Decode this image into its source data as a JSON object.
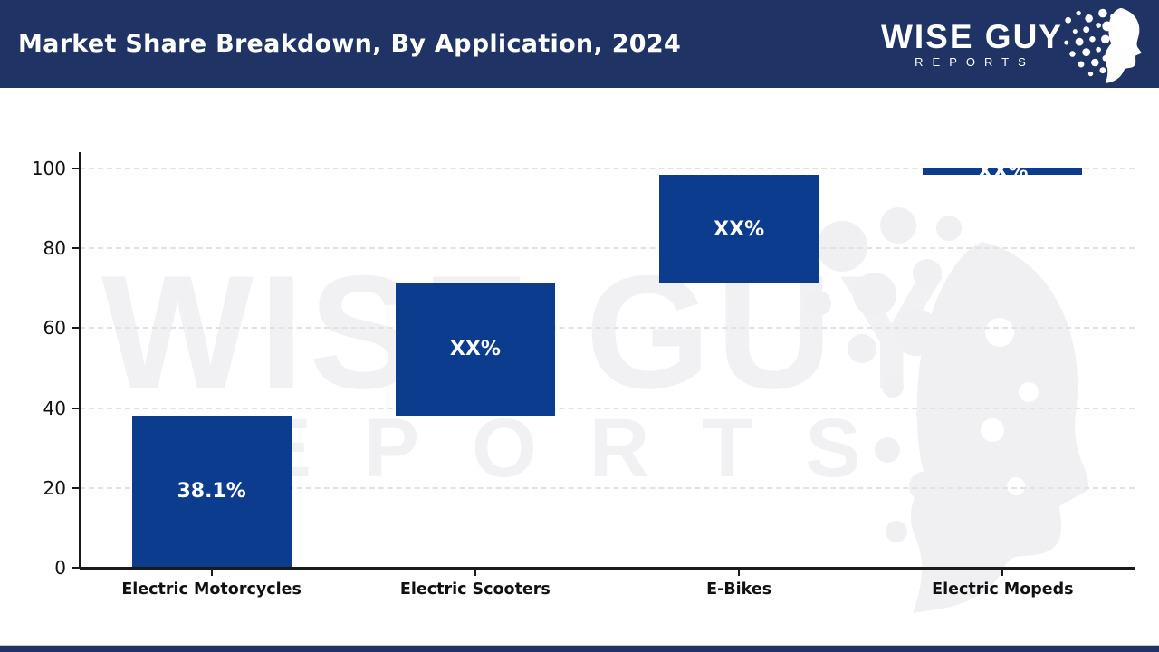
{
  "header": {
    "title": "Market Share Breakdown, By Application, 2024",
    "bg_color": "#1f3465",
    "logo": {
      "line1": "WISE GUY",
      "line2": "REPORTS"
    }
  },
  "watermark": {
    "line1": "WISE GUY",
    "line2": "REPORTS"
  },
  "chart_data": {
    "type": "bar",
    "variant": "floating-segment-waterfall",
    "title": "Market Share Breakdown, By Application, 2024",
    "categories": [
      "Electric Motorcycles",
      "Electric Scooters",
      "E-Bikes",
      "Electric Mopeds"
    ],
    "bars": [
      {
        "category": "Electric Motorcycles",
        "from": 0,
        "to": 38.1,
        "label": "38.1%"
      },
      {
        "category": "Electric Scooters",
        "from": 38.1,
        "to": 71.3,
        "label": "XX%"
      },
      {
        "category": "E-Bikes",
        "from": 71.3,
        "to": 98.3,
        "label": "XX%"
      },
      {
        "category": "Electric Mopeds",
        "from": 98.3,
        "to": 100,
        "label": "XX%"
      }
    ],
    "bar_color": "#0c3c8e",
    "label_color": "#ffffff",
    "ylim": [
      0,
      100
    ],
    "yticks": [
      0,
      20,
      40,
      60,
      80,
      100
    ],
    "grid": "horizontal-dashed",
    "legend": "none",
    "xlabel": "",
    "ylabel": ""
  }
}
